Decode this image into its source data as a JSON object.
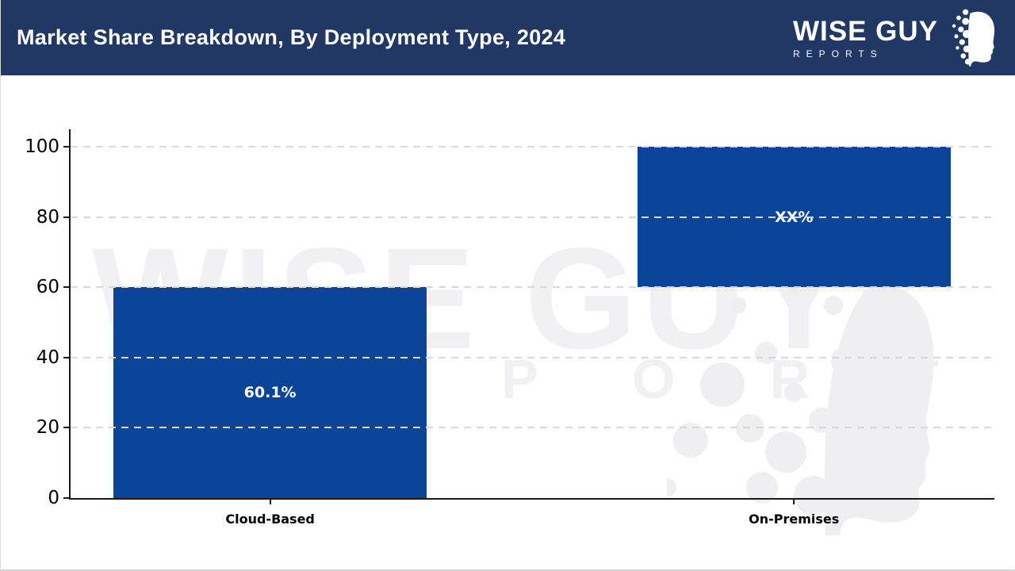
{
  "header": {
    "title": "Market Share Breakdown, By Deployment Type, 2024",
    "logo": {
      "line1": "WISE GUY",
      "line2": "REPORTS"
    },
    "bg_color": "#213864"
  },
  "watermark": {
    "line1": "WISE GUY",
    "line2": "R E P O R T S"
  },
  "chart_data": {
    "type": "bar",
    "subtype": "floating-segment-bars",
    "title": "Market Share Breakdown, By Deployment Type, 2024",
    "categories": [
      "Cloud-Based",
      "On-Premises"
    ],
    "segments": [
      {
        "category": "Cloud-Based",
        "start": 0,
        "end": 60.1,
        "label": "60.1%"
      },
      {
        "category": "On-Premises",
        "start": 60.1,
        "end": 100,
        "label": "XX%"
      }
    ],
    "y_ticks": [
      0,
      20,
      40,
      60,
      80,
      100
    ],
    "ylim": [
      0,
      105
    ],
    "xlabel": "",
    "ylabel": "",
    "grid": "horizontal-dashed",
    "legend": "none",
    "bar_color": "#0a4499",
    "bar_label_color": "#ffffff",
    "axis_color": "#1a1a1a",
    "gridline_color": "#d9d9d9"
  }
}
